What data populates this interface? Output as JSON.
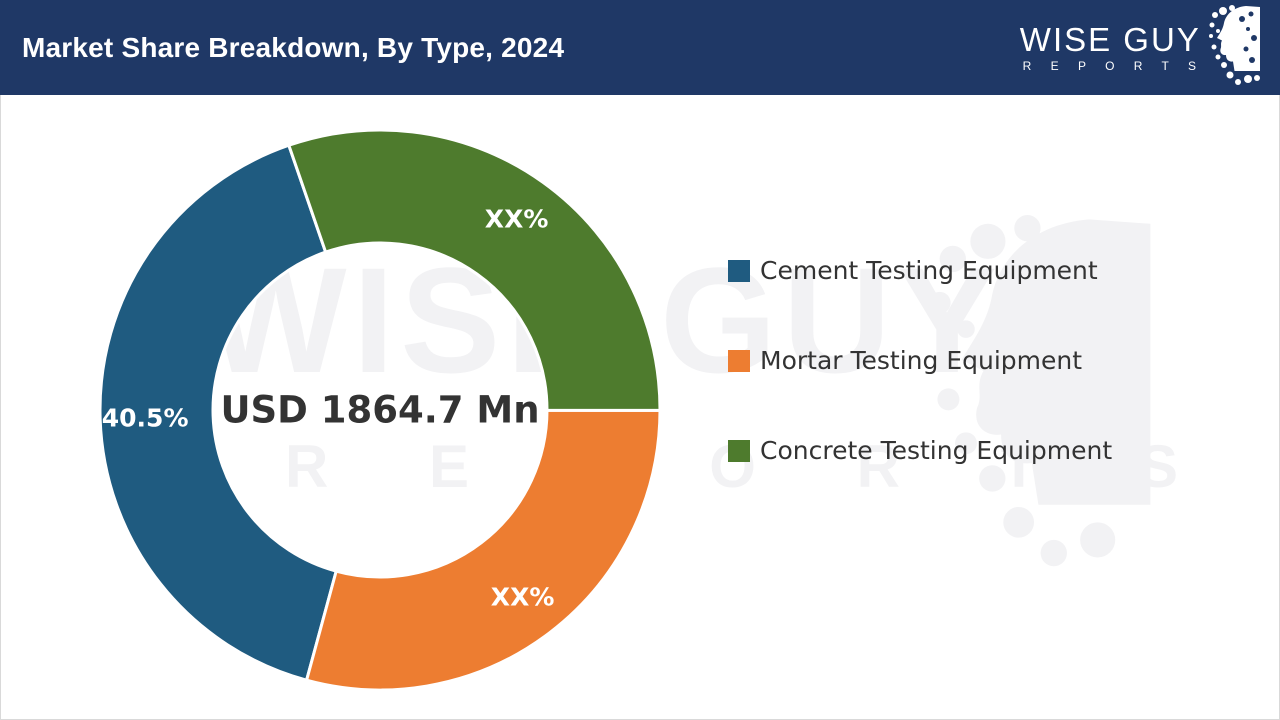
{
  "header": {
    "title": "Market Share Breakdown, By Type, 2024",
    "background_color": "#1f3866",
    "logo": {
      "name": "WISE GUY REPORTS",
      "line1": "WISE GUY",
      "line2": "R E P O R T S"
    }
  },
  "chart_data": {
    "type": "pie",
    "style": "donut",
    "title": "Market Share Breakdown, By Type, 2024",
    "center_label": "USD 1864.7 Mn",
    "start_angle_deg": 109,
    "direction": "counterclockwise",
    "legend_position": "right",
    "segments": [
      {
        "name": "Cement Testing Equipment",
        "label": "40.5%",
        "value_pct": 40.5,
        "color": "#1f5b80"
      },
      {
        "name": "Mortar Testing Equipment",
        "label": "XX%",
        "value_pct": 29.2,
        "color": "#ed7d31"
      },
      {
        "name": "Concrete Testing Equipment",
        "label": "XX%",
        "value_pct": 30.3,
        "color": "#4e7b2d"
      }
    ]
  },
  "watermark": {
    "line1": "WISE GUY",
    "line2": "R E P O R T S"
  }
}
